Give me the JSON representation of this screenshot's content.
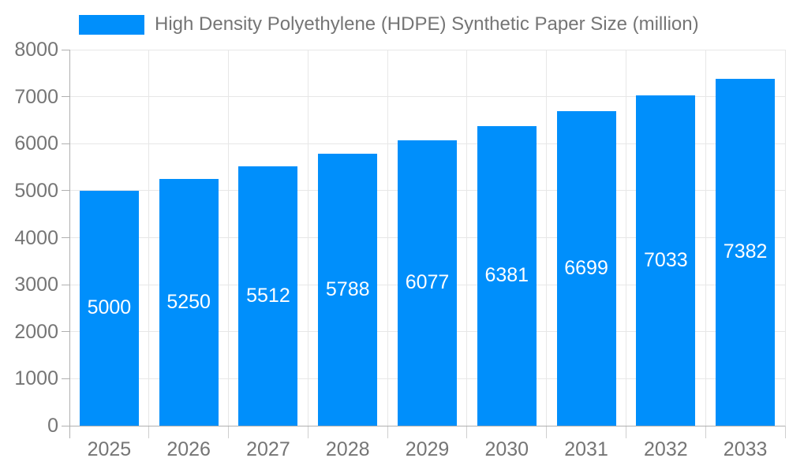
{
  "legend": {
    "label": "High Density Polyethylene (HDPE) Synthetic Paper Size (million)"
  },
  "colors": {
    "bar": "#008FFB",
    "axis": "#b0b0b0",
    "grid": "#e7e7e7",
    "tick": "#cfcfcf",
    "text": "#757575",
    "bar_label": "#ffffff"
  },
  "chart_data": {
    "type": "bar",
    "title": "High Density Polyethylene (HDPE) Synthetic Paper Size (million)",
    "series_name": "High Density Polyethylene (HDPE) Synthetic Paper Size (million)",
    "categories": [
      "2025",
      "2026",
      "2027",
      "2028",
      "2029",
      "2030",
      "2031",
      "2032",
      "2033"
    ],
    "values": [
      5000,
      5250,
      5512,
      5788,
      6077,
      6381,
      6699,
      7033,
      7382
    ],
    "xlabel": "",
    "ylabel": "",
    "ylim": [
      0,
      8000
    ],
    "ytick_step": 1000,
    "grid": true,
    "legend_position": "top",
    "value_labels": "inside-center"
  }
}
